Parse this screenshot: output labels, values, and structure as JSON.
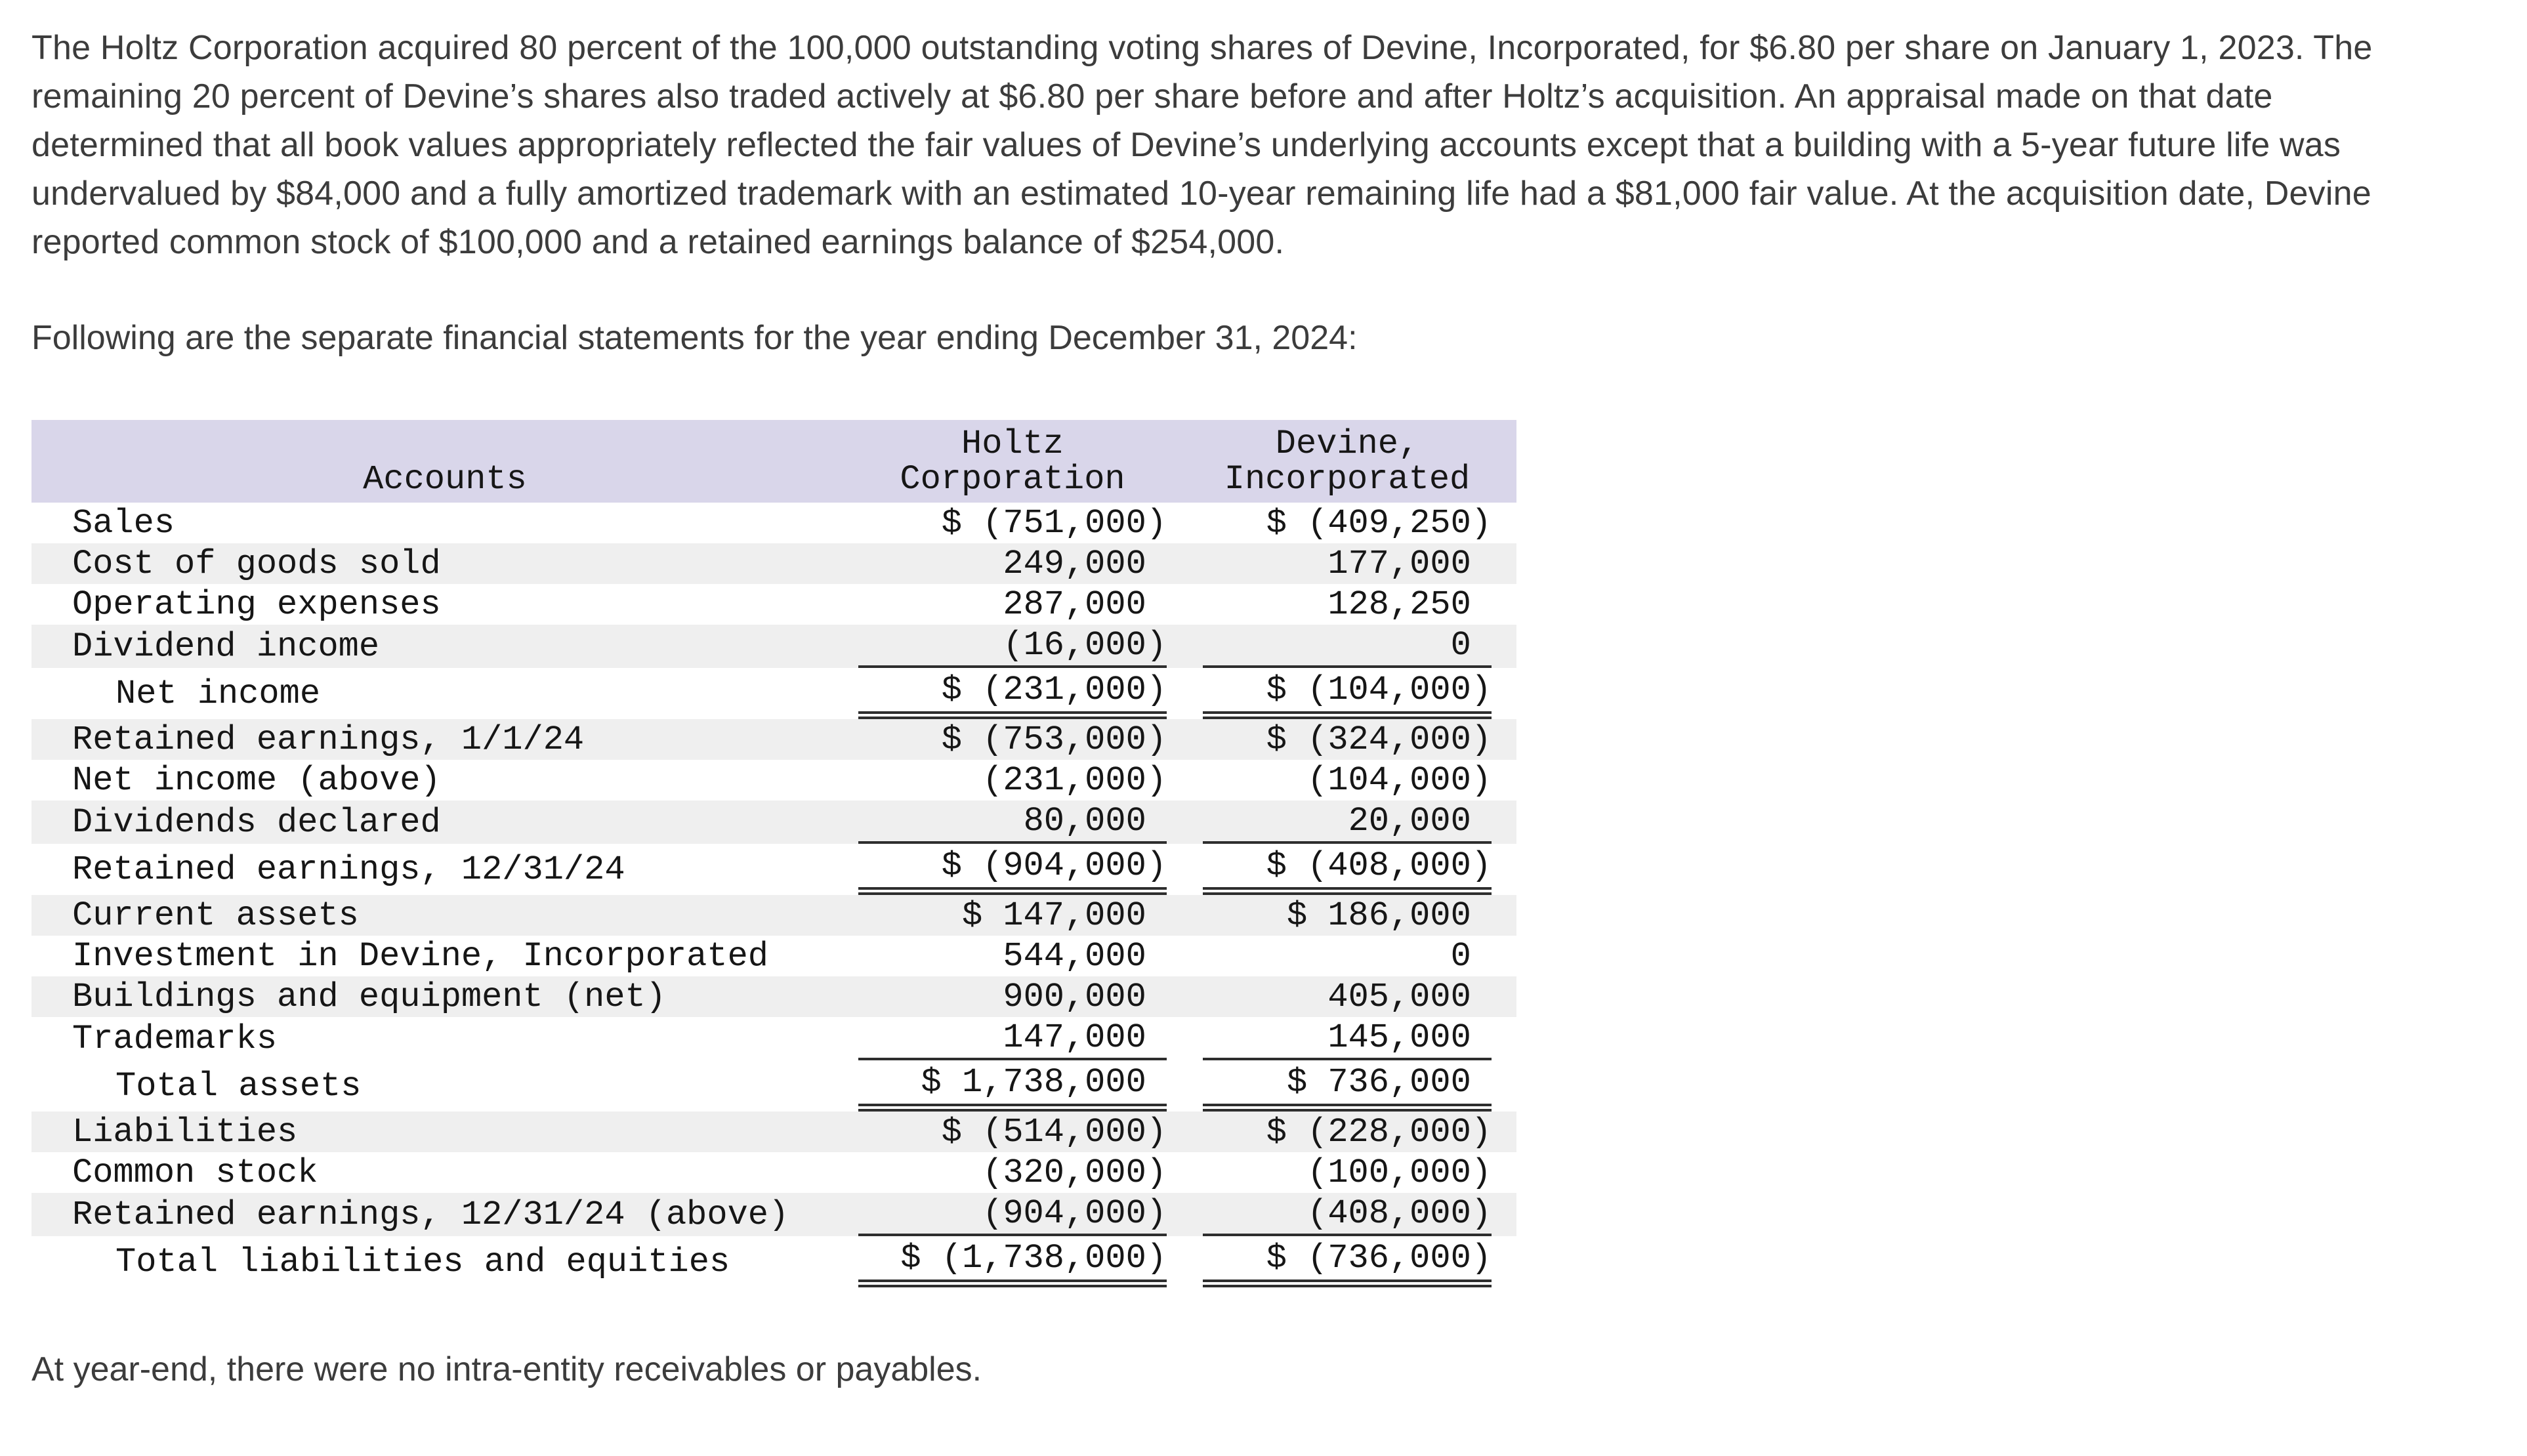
{
  "page": {
    "intro_paragraph": "The Holtz Corporation acquired 80 percent of the 100,000 outstanding voting shares of Devine, Incorporated, for $6.80 per share on January 1, 2023. The remaining 20 percent of Devine’s shares also traded actively at $6.80 per share before and after Holtz’s acquisition. An appraisal made on that date determined that all book values appropriately reflected the fair values of Devine’s underlying accounts except that a building with a 5-year future life was undervalued by $84,000 and a fully amortized trademark with an estimated 10-year remaining life had a $81,000 fair value. At the acquisition date, Devine reported common stock of $100,000 and a retained earnings balance of $254,000.",
    "statements_intro": "Following are the separate financial statements for the year ending December 31, 2024:",
    "footer_note": "At year-end, there were no intra-entity receivables or payables."
  },
  "table": {
    "columns": {
      "accounts_label": "Accounts",
      "holtz": [
        "Holtz",
        "Corporation"
      ],
      "devine": [
        "Devine,",
        "Incorporated"
      ]
    },
    "rows": [
      {
        "label": "Sales",
        "holtz": "$ (751,000)",
        "devine": "$ (409,250)"
      },
      {
        "label": "Cost of goods sold",
        "holtz": "249,000",
        "devine": "177,000"
      },
      {
        "label": "Operating expenses",
        "holtz": "287,000",
        "devine": "128,250"
      },
      {
        "label": "Dividend income",
        "holtz": "(16,000)",
        "devine": "0"
      },
      {
        "label": "Net income",
        "holtz": "$ (231,000)",
        "devine": "$ (104,000)"
      },
      {
        "label": "Retained earnings, 1/1/24",
        "holtz": "$ (753,000)",
        "devine": "$ (324,000)"
      },
      {
        "label": "Net income (above)",
        "holtz": "(231,000)",
        "devine": "(104,000)"
      },
      {
        "label": "Dividends declared",
        "holtz": "80,000",
        "devine": "20,000"
      },
      {
        "label": "Retained earnings, 12/31/24",
        "holtz": "$ (904,000)",
        "devine": "$ (408,000)"
      },
      {
        "label": "Current assets",
        "holtz": "$ 147,000",
        "devine": "$ 186,000"
      },
      {
        "label": "Investment in Devine, Incorporated",
        "holtz": "544,000",
        "devine": "0"
      },
      {
        "label": "Buildings and equipment (net)",
        "holtz": "900,000",
        "devine": "405,000"
      },
      {
        "label": "Trademarks",
        "holtz": "147,000",
        "devine": "145,000"
      },
      {
        "label": "Total assets",
        "holtz": "$ 1,738,000",
        "devine": "$ 736,000"
      },
      {
        "label": "Liabilities",
        "holtz": "$ (514,000)",
        "devine": "$ (228,000)"
      },
      {
        "label": "Common stock",
        "holtz": "(320,000)",
        "devine": "(100,000)"
      },
      {
        "label": "Retained earnings, 12/31/24 (above)",
        "holtz": "(904,000)",
        "devine": "(408,000)"
      },
      {
        "label": "Total liabilities and equities",
        "holtz": "$ (1,738,000)",
        "devine": "$ (736,000)"
      }
    ]
  }
}
